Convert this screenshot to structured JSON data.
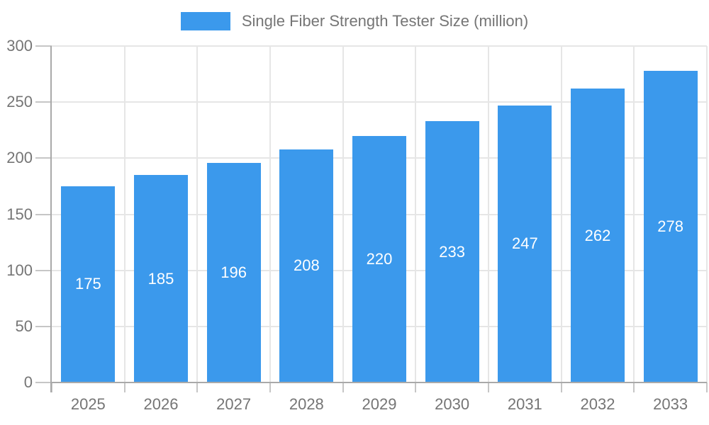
{
  "chart_data": {
    "type": "bar",
    "title": "Single Fiber Strength Tester Size (million)",
    "legend_label": "Single Fiber Strength Tester Size (million)",
    "legend_position": "top",
    "categories": [
      "2025",
      "2026",
      "2027",
      "2028",
      "2029",
      "2030",
      "2031",
      "2032",
      "2033"
    ],
    "values": [
      175,
      185,
      196,
      208,
      220,
      233,
      247,
      262,
      278
    ],
    "xlabel": "",
    "ylabel": "",
    "ylim": [
      0,
      300
    ],
    "yticks": [
      0,
      50,
      100,
      150,
      200,
      250,
      300
    ],
    "grid": true,
    "bar_value_labels": true
  },
  "colors": {
    "bar": "#3B99EC",
    "axis_line": "#A9A9A9",
    "gridline": "#E6E6E6",
    "tick": "#C6C6C6",
    "axis_text": "#757575",
    "bar_label_text": "#FFFFFF",
    "background": "#FFFFFF"
  }
}
